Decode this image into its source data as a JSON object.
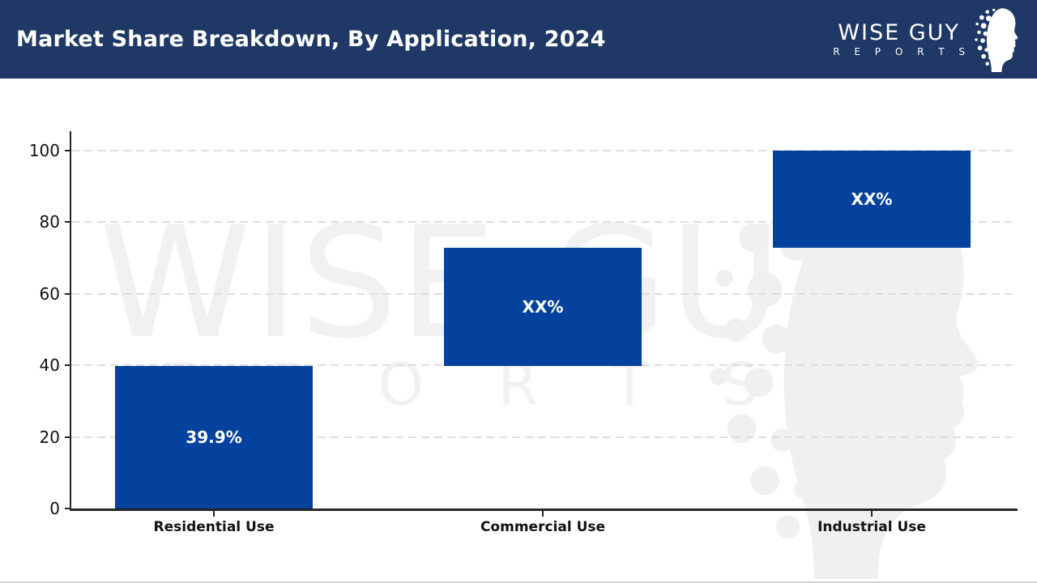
{
  "header": {
    "title": "Market Share Breakdown, By Application, 2024",
    "logo": {
      "wordmark": "WISE GUY",
      "subtext": "R E P O R T S"
    }
  },
  "watermark": {
    "wordmark": "WISE GUY",
    "subtext": "E P O R T S"
  },
  "colors": {
    "header_bg": "#1f3866",
    "bar": "#05429d",
    "bar_label": "#ffffff",
    "grid": "#dedede",
    "axis": "#262626",
    "watermark": "#f1f1f4"
  },
  "chart_data": {
    "type": "bar",
    "subtype": "waterfall",
    "title": "Market Share Breakdown, By Application, 2024",
    "categories": [
      "Residential Use",
      "Commercial Use",
      "Industrial Use"
    ],
    "segments": [
      {
        "category": "Residential Use",
        "start": 0,
        "end": 39.9,
        "label": "39.9%"
      },
      {
        "category": "Commercial Use",
        "start": 39.9,
        "end": 72.8,
        "label": "XX%"
      },
      {
        "category": "Industrial Use",
        "start": 72.8,
        "end": 100,
        "label": "XX%"
      }
    ],
    "yticks": [
      0,
      20,
      40,
      60,
      80,
      100
    ],
    "ylim": [
      0,
      105
    ],
    "xlabel": "",
    "ylabel": "",
    "grid": "horizontal-dashed",
    "legend": "none",
    "bar_color": "#05429d",
    "bar_label_color": "#ffffff"
  }
}
